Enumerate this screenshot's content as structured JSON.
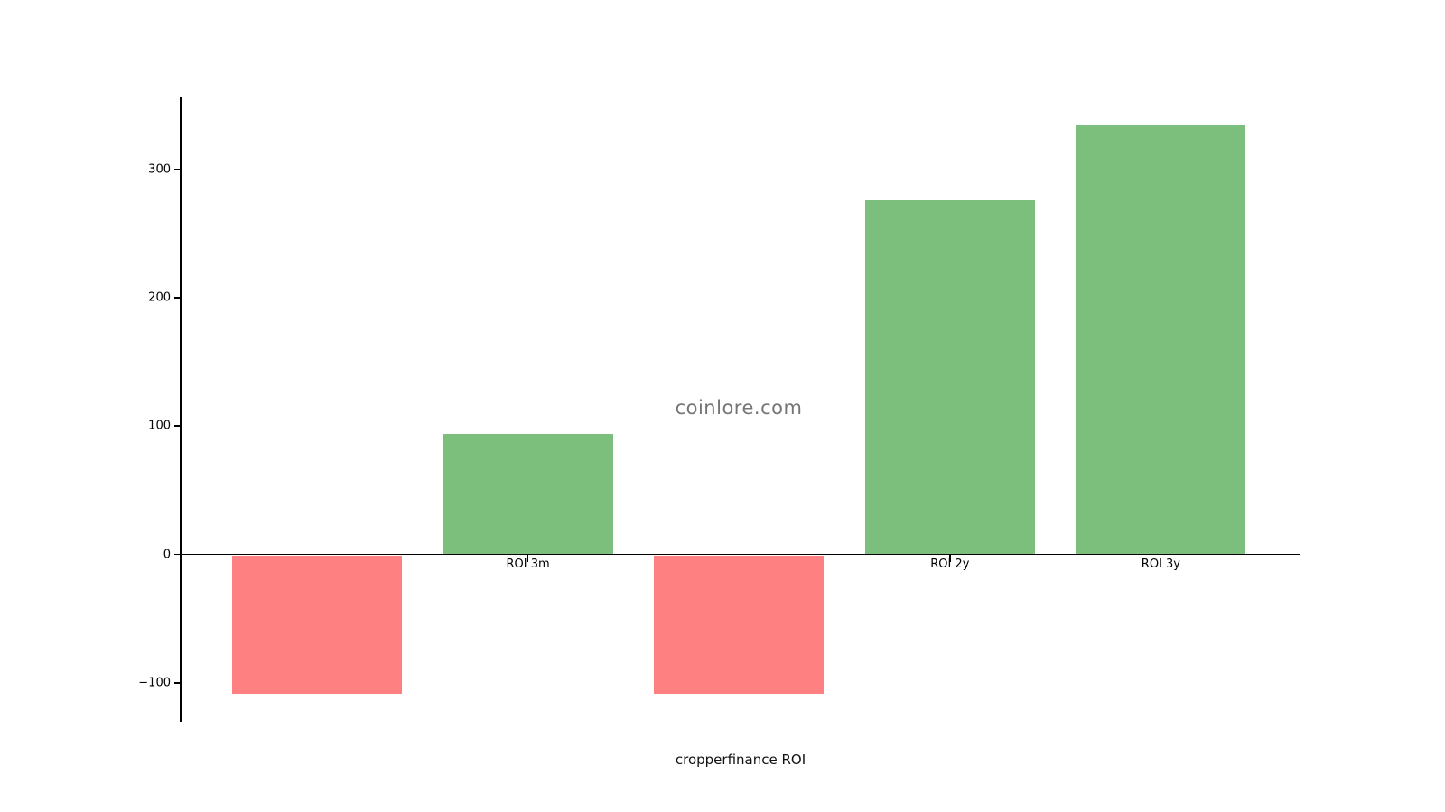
{
  "page": {
    "background": "#ffffff"
  },
  "watermark": "coinlore.com",
  "title": "cropperfinance ROI",
  "chart_data": {
    "type": "bar",
    "title": "cropperfinance ROI",
    "xlabel": "",
    "ylabel": "",
    "categories": [
      "",
      "ROI 3m",
      "",
      "ROI 2y",
      "ROI 3y"
    ],
    "values": [
      -108,
      94,
      -108,
      276,
      334
    ],
    "bar_colors": [
      "#ff8080",
      "#7cbf7c",
      "#ff8080",
      "#7cbf7c",
      "#7cbf7c"
    ],
    "positive_color": "#7cbf7c",
    "negative_color": "#ff8080",
    "axis_color": "#000000",
    "yticks": [
      -100,
      0,
      100,
      200,
      300
    ],
    "ylim": [
      -130,
      357
    ],
    "grid": false,
    "legend_position": "none",
    "watermark": "coinlore.com"
  }
}
